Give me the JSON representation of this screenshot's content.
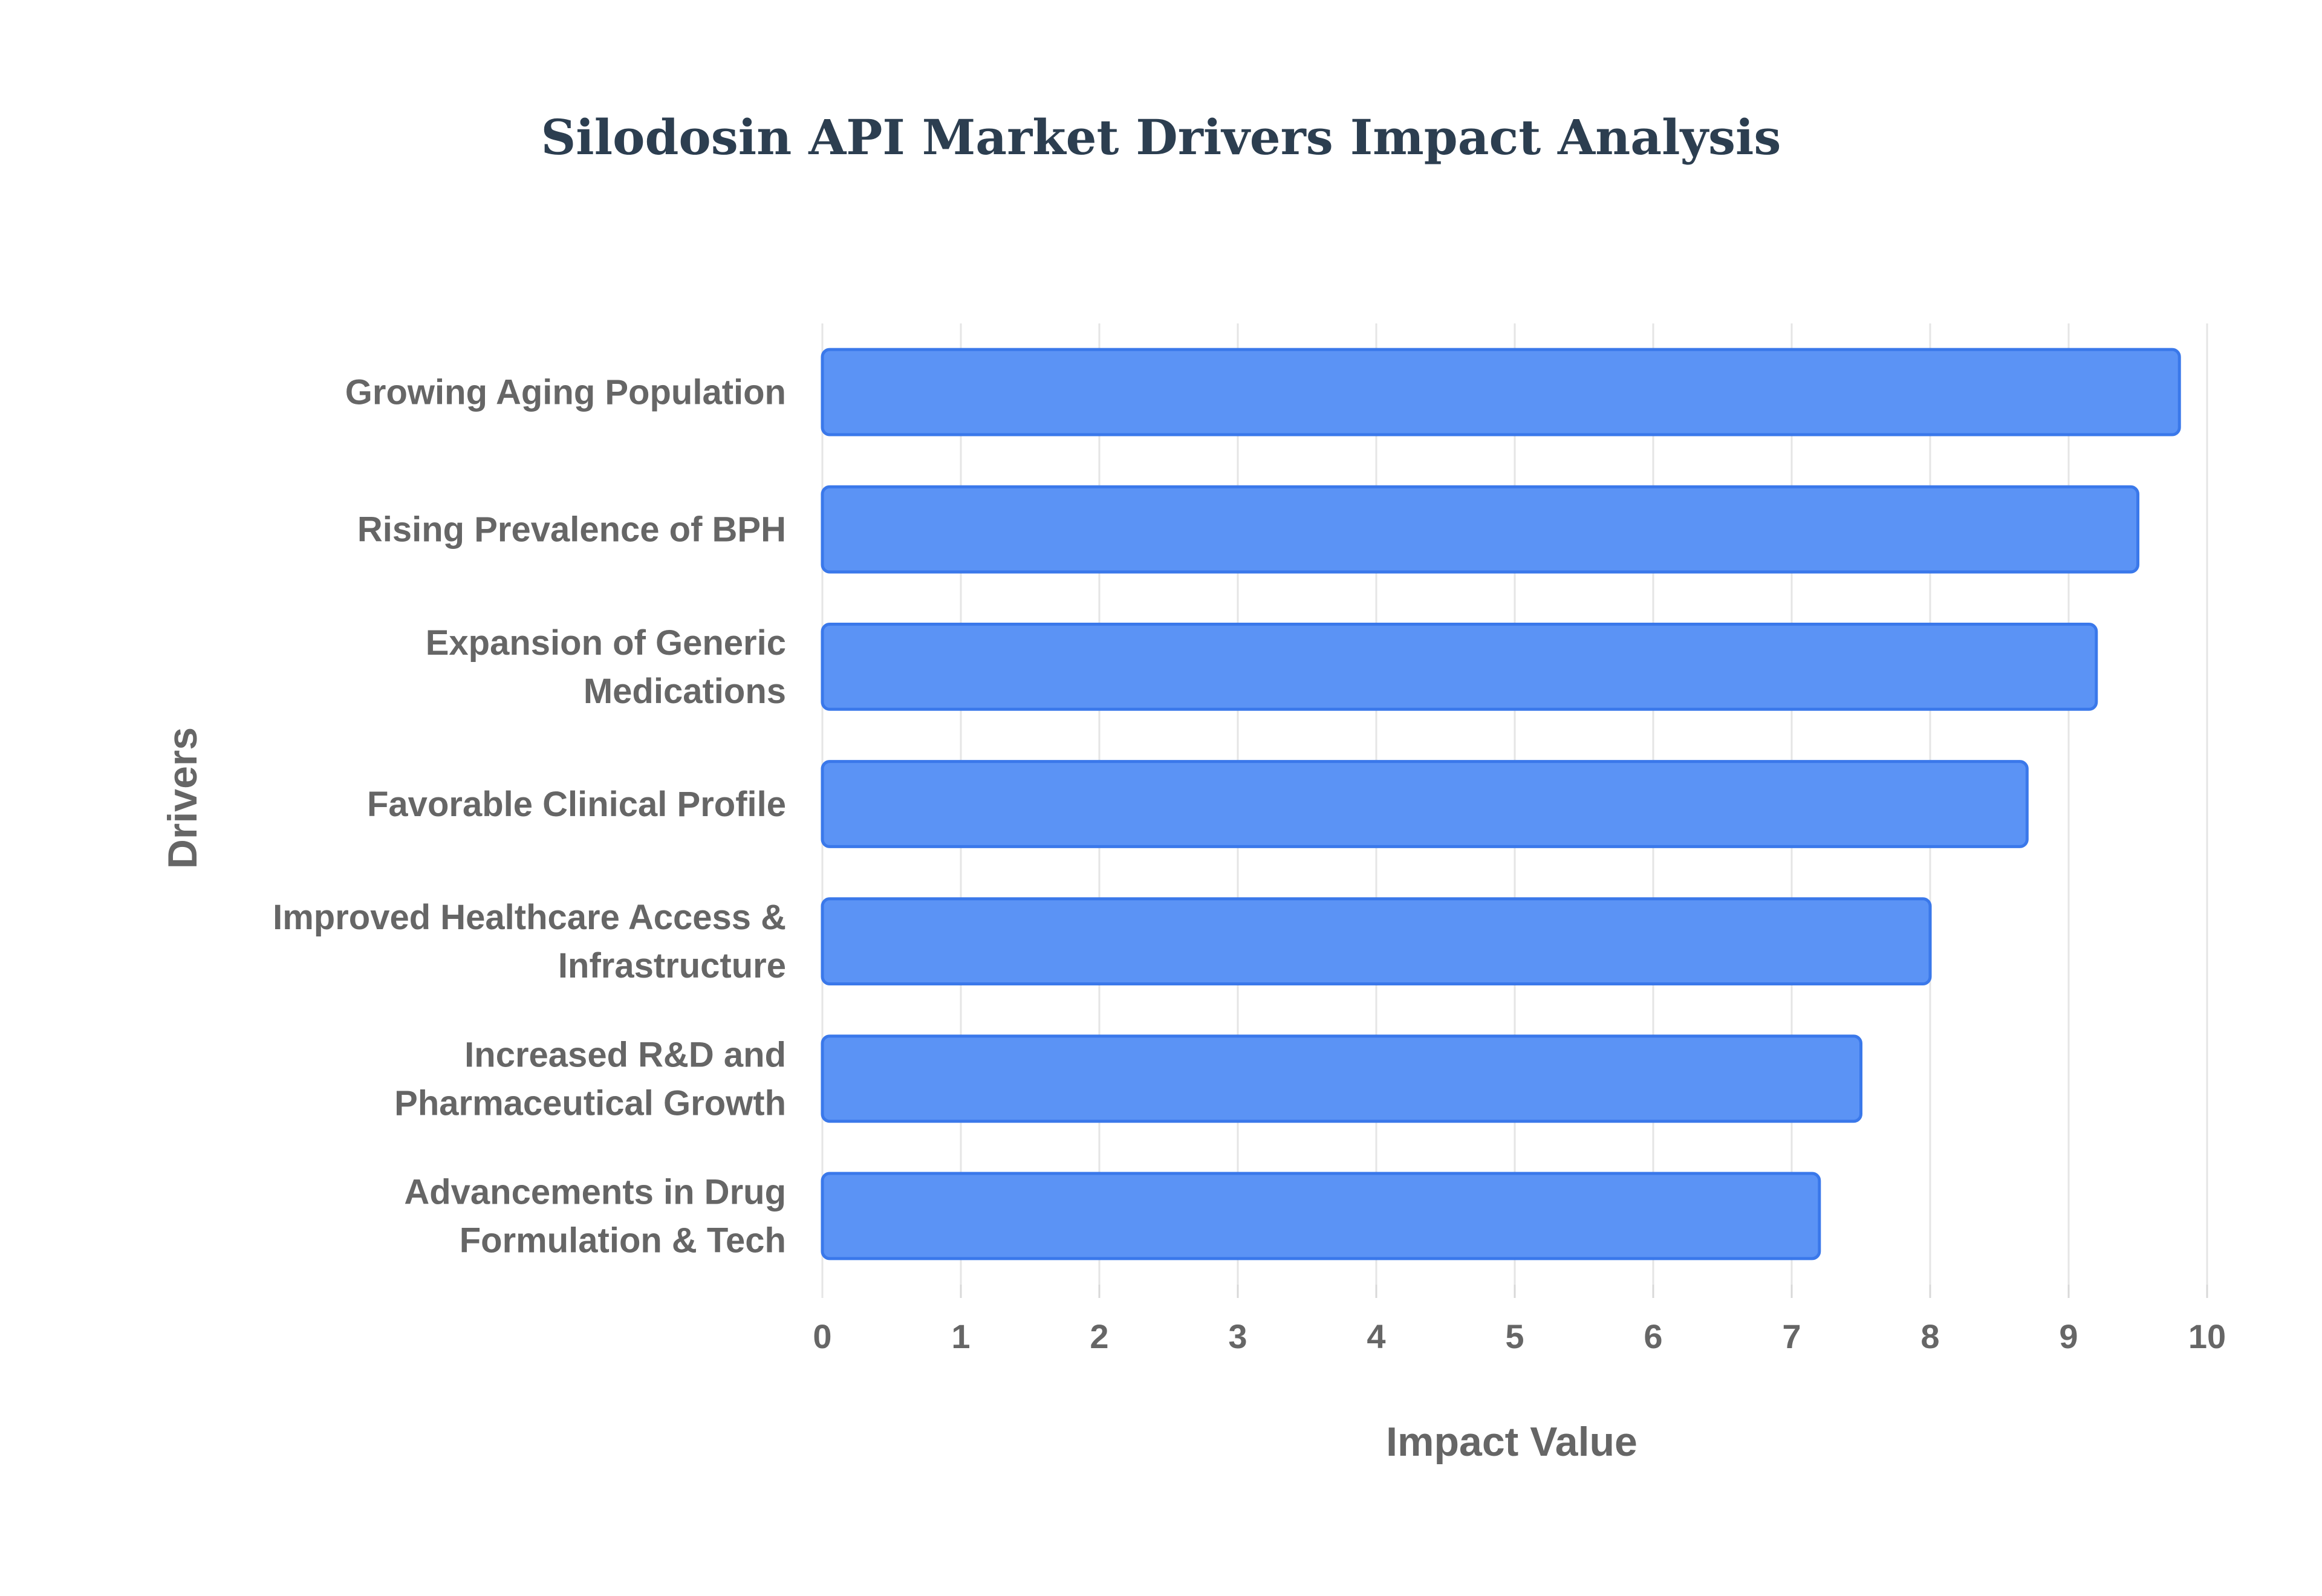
{
  "chart_data": {
    "type": "bar",
    "orientation": "horizontal",
    "title": "Silodosin API Market Drivers Impact Analysis",
    "xlabel": "Impact Value",
    "ylabel": "Drivers",
    "xlim": [
      0,
      10
    ],
    "xticks": [
      "0",
      "1",
      "2",
      "3",
      "4",
      "5",
      "6",
      "7",
      "8",
      "9",
      "10"
    ],
    "grid": true,
    "categories": [
      [
        "Growing Aging Population"
      ],
      [
        "Rising Prevalence of BPH"
      ],
      [
        "Expansion of Generic",
        "Medications"
      ],
      [
        "Favorable Clinical Profile"
      ],
      [
        "Improved Healthcare Access &",
        "Infrastructure"
      ],
      [
        "Increased R&D and",
        "Pharmaceutical Growth"
      ],
      [
        "Advancements in Drug",
        "Formulation & Tech"
      ]
    ],
    "values": [
      9.8,
      9.5,
      9.2,
      8.7,
      8.0,
      7.5,
      7.2
    ],
    "colors": {
      "bar_fill": "#5b93f5",
      "bar_stroke": "#3a78ea",
      "title": "#2c3e50",
      "label": "#666666",
      "grid": "#e5e5e5"
    }
  }
}
